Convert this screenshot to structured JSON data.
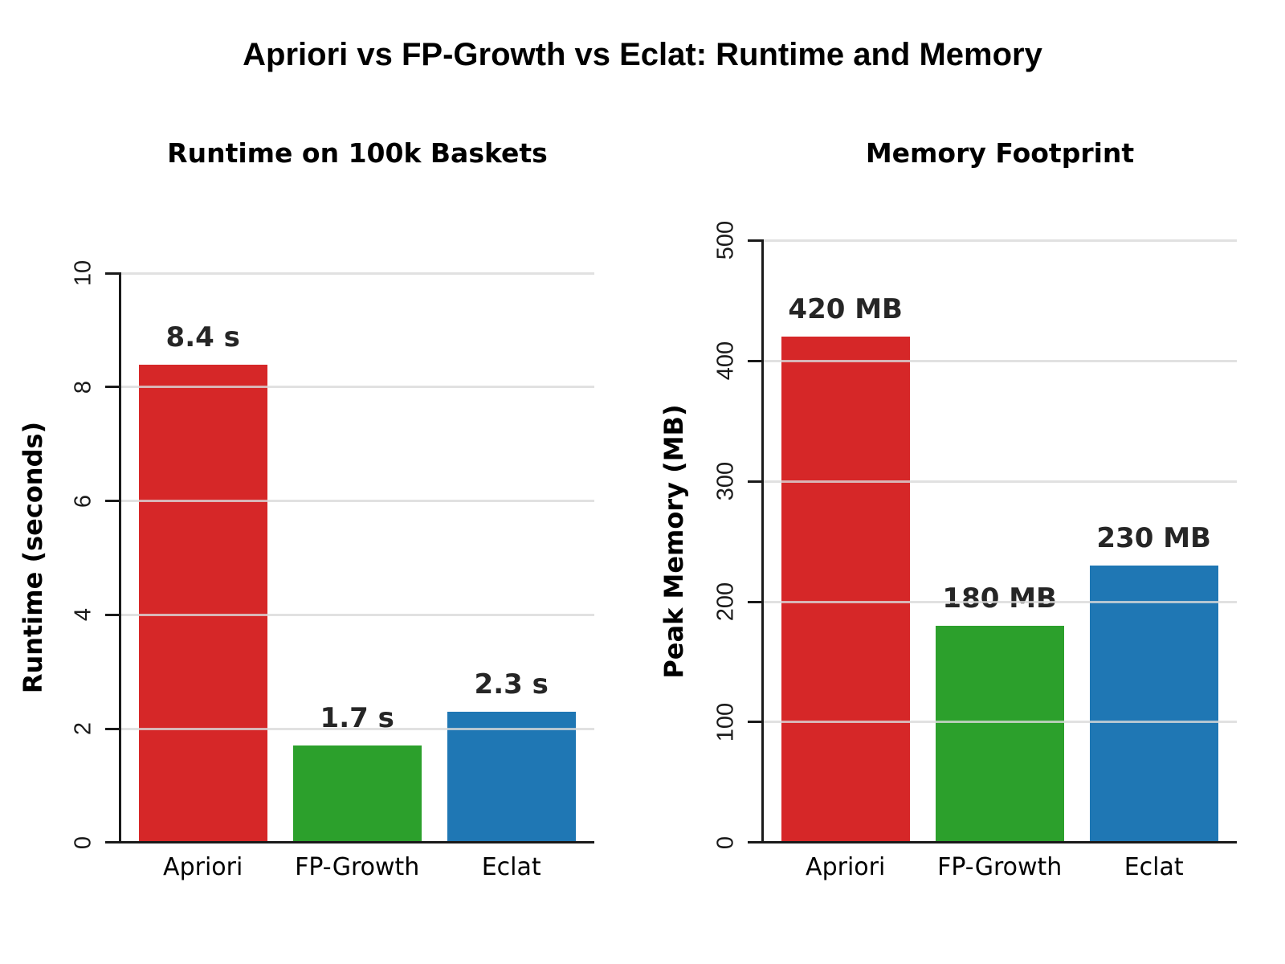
{
  "page": {
    "title": "Apriori vs FP-Growth vs Eclat: Runtime and Memory"
  },
  "colors": {
    "axis": "#1a1a1a",
    "grid": "#d9d9d9",
    "value_label": "#262626",
    "background": "#ffffff"
  },
  "chart_data": [
    {
      "type": "bar",
      "title": "Runtime on 100k Baskets",
      "ylabel": "Runtime (seconds)",
      "categories": [
        "Apriori",
        "FP-Growth",
        "Eclat"
      ],
      "values": [
        8.4,
        1.7,
        2.3
      ],
      "bar_labels": [
        "8.4 s",
        "1.7 s",
        "2.3 s"
      ],
      "colors": [
        "#d62728",
        "#2ca02c",
        "#1f77b4"
      ],
      "yticks": [
        0,
        2,
        4,
        6,
        8,
        10
      ],
      "ylim": [
        0,
        10
      ],
      "grid": "on",
      "legend": "none"
    },
    {
      "type": "bar",
      "title": "Memory Footprint",
      "ylabel": "Peak Memory (MB)",
      "categories": [
        "Apriori",
        "FP-Growth",
        "Eclat"
      ],
      "values": [
        420,
        180,
        230
      ],
      "bar_labels": [
        "420 MB",
        "180 MB",
        "230 MB"
      ],
      "colors": [
        "#d62728",
        "#2ca02c",
        "#1f77b4"
      ],
      "yticks": [
        0,
        100,
        200,
        300,
        400,
        500
      ],
      "ylim": [
        0,
        500
      ],
      "grid": "on",
      "legend": "none"
    }
  ]
}
